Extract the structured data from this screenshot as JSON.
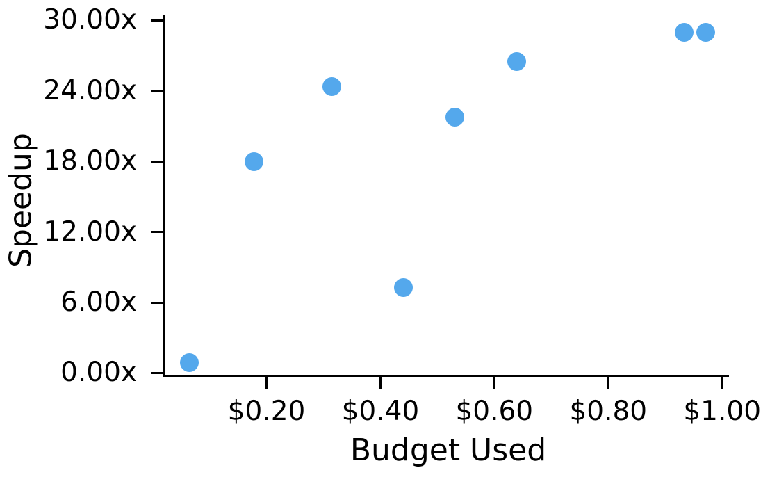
{
  "chart_data": {
    "type": "scatter",
    "title": "",
    "xlabel": "Budget Used",
    "ylabel": "Speedup",
    "x_ticks": {
      "values": [
        0.2,
        0.4,
        0.6,
        0.8,
        1.0
      ],
      "labels": [
        "$0.20",
        "$0.40",
        "$0.60",
        "$0.80",
        "$1.00"
      ]
    },
    "y_ticks": {
      "values": [
        0,
        6,
        12,
        18,
        24,
        30
      ],
      "labels": [
        "0.00x",
        "6.00x",
        "12.00x",
        "18.00x",
        "24.00x",
        "30.00x"
      ]
    },
    "xlim": [
      0.02,
      1.012
    ],
    "ylim": [
      -0.27,
      30.5
    ],
    "grid": false,
    "legend_position": "none",
    "marker_color": "#54a8ec",
    "points": [
      {
        "x": 0.064,
        "y": 0.9
      },
      {
        "x": 0.178,
        "y": 18.0
      },
      {
        "x": 0.315,
        "y": 24.4
      },
      {
        "x": 0.44,
        "y": 7.3
      },
      {
        "x": 0.53,
        "y": 21.8
      },
      {
        "x": 0.639,
        "y": 26.5
      },
      {
        "x": 0.933,
        "y": 29.0
      },
      {
        "x": 0.971,
        "y": 29.0
      }
    ]
  }
}
